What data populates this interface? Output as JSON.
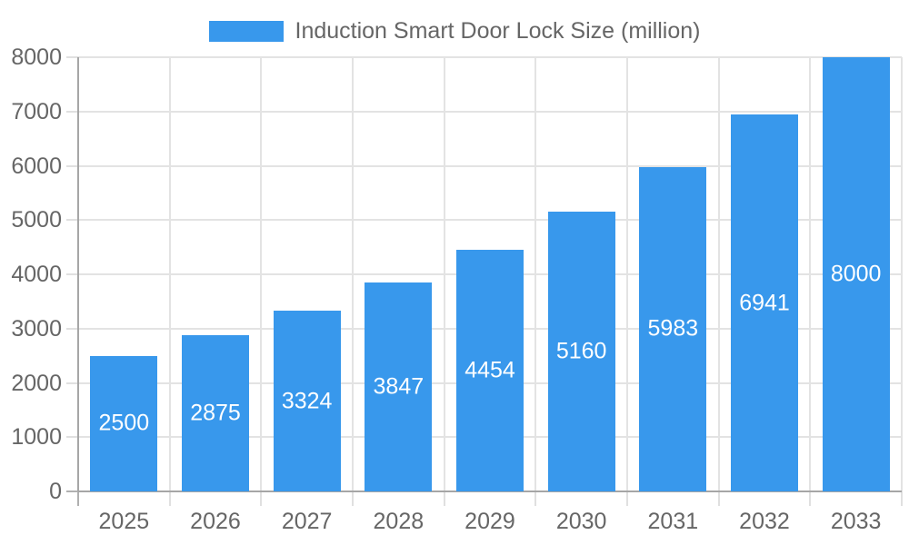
{
  "legend": {
    "label": "Induction Smart Door Lock Size (million)"
  },
  "colors": {
    "bar": "#3898EC",
    "grid": "#E3E3E3",
    "axis": "#A6A6A6",
    "tick_zero": "#B0B0B0",
    "tick": "#E0E0E0",
    "axis_text": "#666666",
    "value_text": "#FFFFFF",
    "background": "#FFFFFF"
  },
  "chart_data": {
    "type": "bar",
    "title": "Induction Smart Door Lock Size (million)",
    "categories": [
      "2025",
      "2026",
      "2027",
      "2028",
      "2029",
      "2030",
      "2031",
      "2032",
      "2033"
    ],
    "values": [
      2500,
      2875,
      3324,
      3847,
      4454,
      5160,
      5983,
      6941,
      8000
    ],
    "value_labels_shown": [
      "2500",
      "2875",
      "3324",
      "3847",
      "4454",
      "5160",
      "5983",
      "6941",
      "8000"
    ],
    "y_tick_labels": [
      "0",
      "1000",
      "2000",
      "3000",
      "4000",
      "5000",
      "6000",
      "7000",
      "8000"
    ],
    "xlabel": "",
    "ylabel": "",
    "ylim": [
      0,
      8000
    ],
    "ytick_step": 1000,
    "grid": true,
    "legend_position": "top-center",
    "value_label_position": "inside-center"
  }
}
